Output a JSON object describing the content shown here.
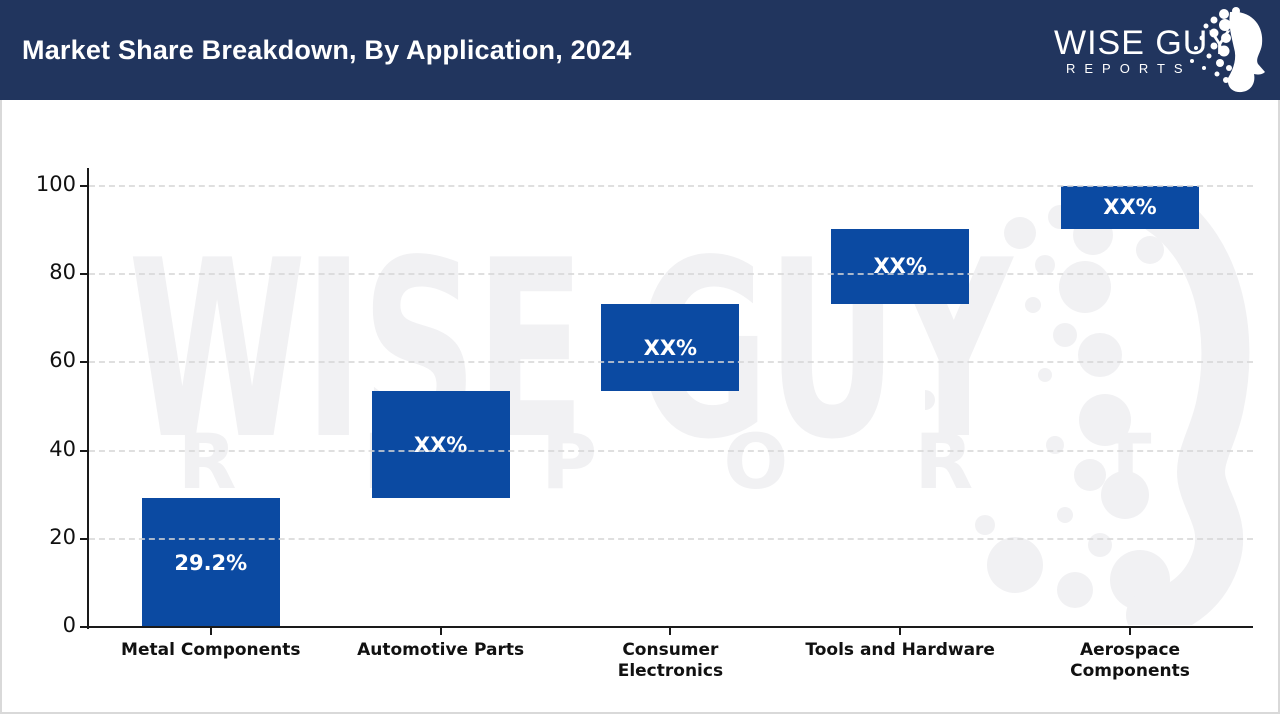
{
  "header": {
    "title": "Market Share Breakdown, By Application, 2024",
    "logo": {
      "primary": "WISE GUY",
      "secondary": "REPORTS"
    }
  },
  "watermark": {
    "primary": "WISE GUY",
    "secondary": "R E P O R T S"
  },
  "chart_data": {
    "type": "bar",
    "variant": "waterfall",
    "title": "Market Share Breakdown, By Application, 2024",
    "categories": [
      "Metal Components",
      "Automotive Parts",
      "Consumer Electronics",
      "Tools and Hardware",
      "Aerospace Components"
    ],
    "category_label_lines": [
      [
        "Metal Components"
      ],
      [
        "Automotive Parts"
      ],
      [
        "Consumer",
        "Electronics"
      ],
      [
        "Tools and Hardware"
      ],
      [
        "Aerospace",
        "Components"
      ]
    ],
    "segments": [
      {
        "category": "Metal Components",
        "start": 0,
        "end": 29.2,
        "label": "29.2%"
      },
      {
        "category": "Automotive Parts",
        "start": 29.2,
        "end": 53.5,
        "label": "XX%"
      },
      {
        "category": "Consumer Electronics",
        "start": 53.5,
        "end": 73.2,
        "label": "XX%"
      },
      {
        "category": "Tools and Hardware",
        "start": 73.2,
        "end": 90.3,
        "label": "XX%"
      },
      {
        "category": "Aerospace Components",
        "start": 90.3,
        "end": 100,
        "label": "XX%"
      }
    ],
    "yticks": [
      0,
      20,
      40,
      60,
      80,
      100
    ],
    "ylim": [
      0,
      105
    ],
    "xlabel": "",
    "ylabel": "",
    "legend": null,
    "grid": "horizontal-dashed",
    "colors": {
      "bar": "#0b4aa2",
      "header_bg": "#21355e",
      "axis": "#1a1a1a",
      "grid": "#d6d6d6",
      "bar_label": "#ffffff",
      "tick_label": "#111111",
      "watermark": "#f1f1f3"
    }
  }
}
